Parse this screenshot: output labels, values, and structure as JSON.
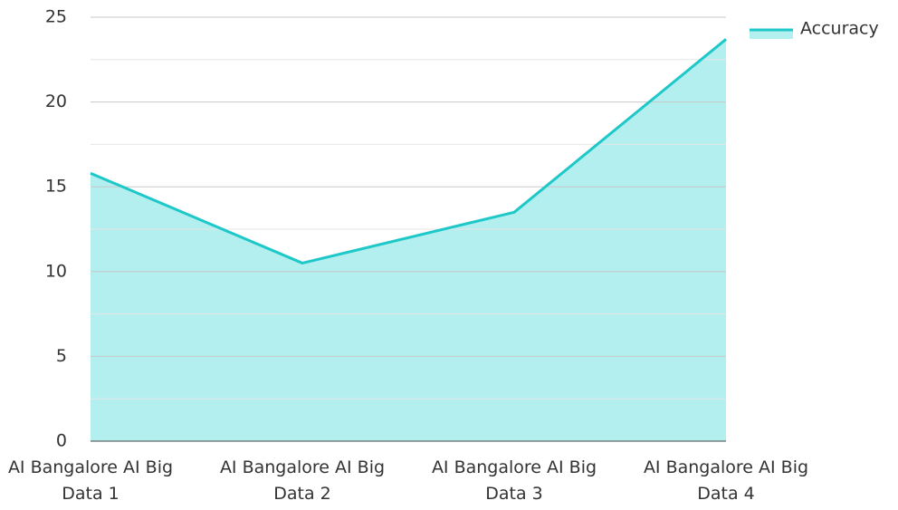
{
  "chart_data": {
    "type": "area",
    "categories": [
      "AI Bangalore AI Big Data 1",
      "AI Bangalore AI Big Data 2",
      "AI Bangalore AI Big Data 3",
      "AI Bangalore AI Big Data 4"
    ],
    "series": [
      {
        "name": "Accuracy",
        "color": "#1ec8c8",
        "fill": "#b2efee",
        "values": [
          15.8,
          10.5,
          13.5,
          23.7
        ]
      }
    ],
    "ylim": [
      0,
      25
    ],
    "yticks": [
      0,
      5,
      10,
      15,
      20,
      25
    ],
    "minor_yticks": [
      2.5,
      7.5,
      12.5,
      17.5,
      22.5
    ],
    "grid": true,
    "legend": "top-right"
  }
}
